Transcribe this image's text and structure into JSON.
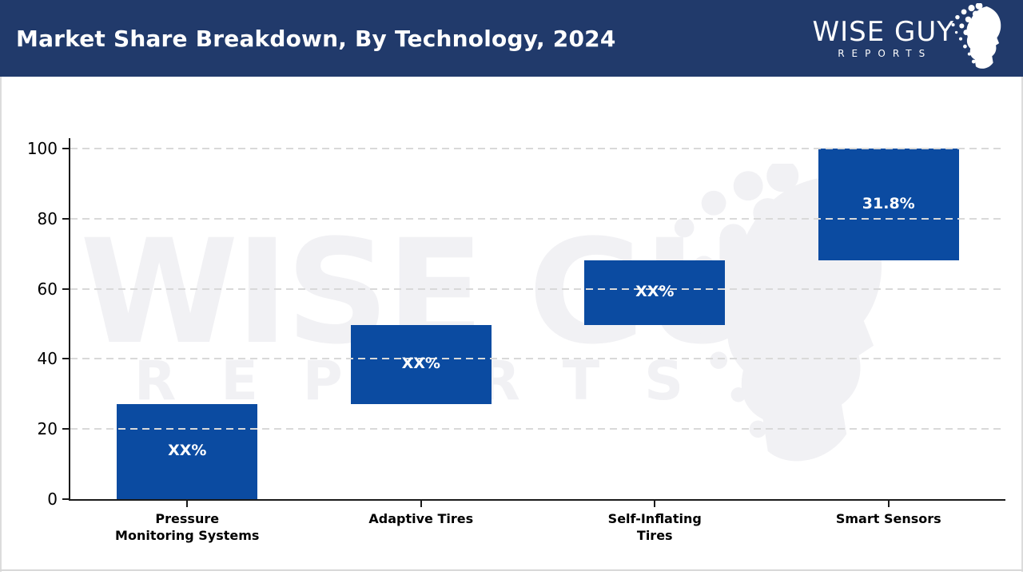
{
  "header": {
    "title": "Market Share Breakdown, By Technology, 2024",
    "logo_line1": "WISE GUY",
    "logo_line2": "REPORTS"
  },
  "watermark": {
    "line1": "WISE GUY",
    "line2": "REPORTS"
  },
  "colors": {
    "header_bg": "#213a6b",
    "bar_fill": "#0b4ba1",
    "bar_label": "#ffffff",
    "gridline": "#d9d9d9",
    "axis": "#1a1a1a",
    "watermark": "#f1f1f4"
  },
  "chart_data": {
    "type": "bar",
    "subtype": "floating-waterfall-segments",
    "title": "Market Share Breakdown, By Technology, 2024",
    "categories": [
      [
        "Pressure",
        "Monitoring Systems"
      ],
      [
        "Adaptive Tires"
      ],
      [
        "Self-Inflating",
        "Tires"
      ],
      [
        "Smart Sensors"
      ]
    ],
    "segments": [
      {
        "category": "Pressure Monitoring Systems",
        "start": 0,
        "end": 27.2,
        "label": "XX%"
      },
      {
        "category": "Adaptive Tires",
        "start": 27.2,
        "end": 49.7,
        "label": "XX%"
      },
      {
        "category": "Self-Inflating Tires",
        "start": 49.7,
        "end": 68.2,
        "label": "XX%"
      },
      {
        "category": "Smart Sensors",
        "start": 68.2,
        "end": 100,
        "label": "31.8%"
      }
    ],
    "yticks": [
      0,
      20,
      40,
      60,
      80,
      100
    ],
    "ylim": [
      0,
      103
    ],
    "xlabel": "",
    "ylabel": "",
    "grid": "horizontal-dashed",
    "legend": "none"
  }
}
